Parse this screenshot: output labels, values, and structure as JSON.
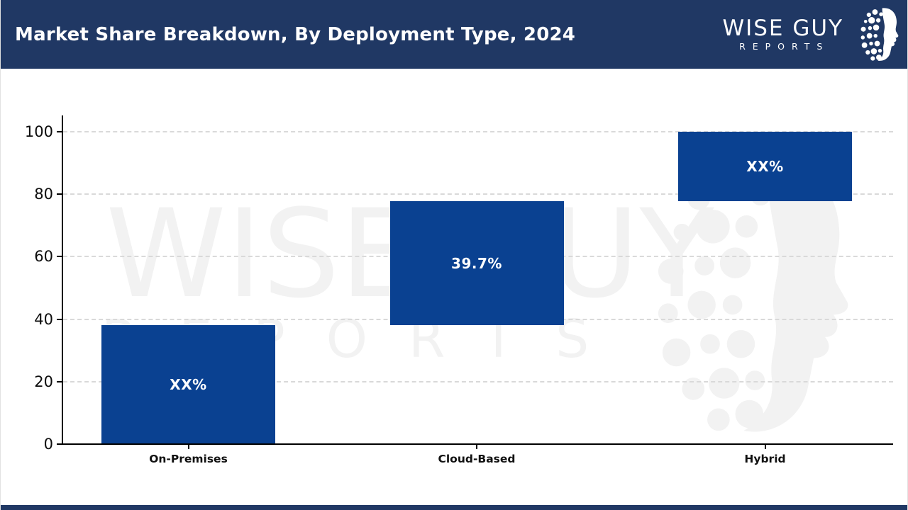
{
  "header": {
    "title": "Market Share Breakdown, By Deployment Type, 2024",
    "logo": {
      "line1": "WISE GUY",
      "line2": "REPORTS"
    }
  },
  "watermark": {
    "line1": "WISE GUY",
    "line2": "REPORTS"
  },
  "chart_data": {
    "type": "bar",
    "subtype": "floating-stacked-segments",
    "title": "Market Share Breakdown, By Deployment Type, 2024",
    "categories": [
      "On-Premises",
      "Cloud-Based",
      "Hybrid"
    ],
    "series": [
      {
        "name": "Market Share (%)",
        "segments": [
          {
            "category": "On-Premises",
            "start": 0,
            "end": 38.0,
            "value_label": "XX%"
          },
          {
            "category": "Cloud-Based",
            "start": 38.0,
            "end": 77.7,
            "value_label": "39.7%"
          },
          {
            "category": "Hybrid",
            "start": 77.7,
            "end": 100.0,
            "value_label": "XX%"
          }
        ]
      }
    ],
    "yticks": [
      0,
      20,
      40,
      60,
      80,
      100
    ],
    "ylim": [
      0,
      105
    ],
    "grid": "horizontal-dashed",
    "legend": "none",
    "xlabel": "",
    "ylabel": ""
  },
  "colors": {
    "header_bg": "#203864",
    "footer_bg": "#203864",
    "bar": "#0a4191",
    "grid": "#d9d9d9",
    "watermark": "#f2f2f2",
    "title_text": "#ffffff"
  }
}
